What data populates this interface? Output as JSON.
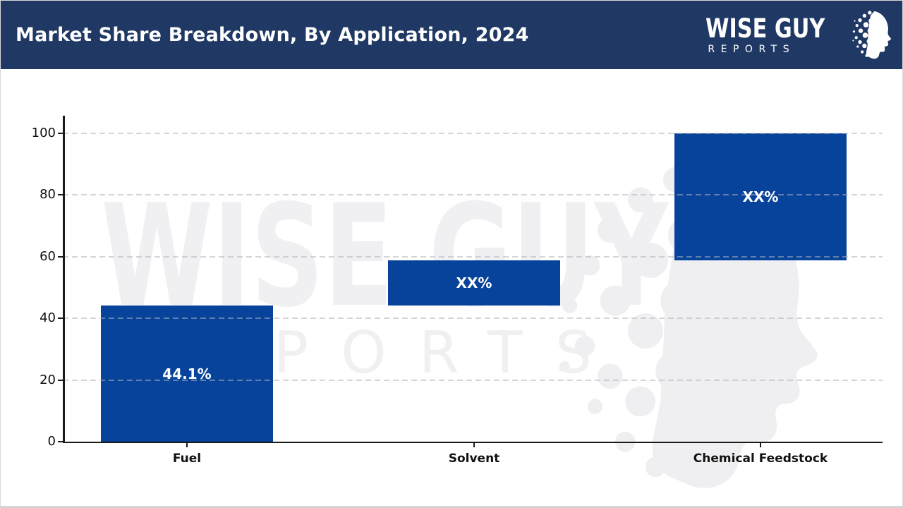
{
  "header": {
    "title": "Market Share Breakdown, By Application, 2024",
    "background_color": "#1f3864",
    "logo": {
      "line1": "WISE GUY",
      "line2": "REPORTS"
    }
  },
  "watermark": {
    "line1": "WISE GUY",
    "line2": "REPORTS"
  },
  "chart_data": {
    "type": "bar",
    "subtype": "waterfall",
    "title": "Market Share Breakdown, By Application, 2024",
    "categories": [
      "Fuel",
      "Solvent",
      "Chemical Feedstock"
    ],
    "segments": [
      {
        "category": "Fuel",
        "start": 0,
        "end": 44.1,
        "label": "44.1%"
      },
      {
        "category": "Solvent",
        "start": 44.1,
        "end": 58.8,
        "label": "XX%"
      },
      {
        "category": "Chemical Feedstock",
        "start": 58.8,
        "end": 100,
        "label": "XX%"
      }
    ],
    "y_ticks": [
      0,
      20,
      40,
      60,
      80,
      100
    ],
    "ylim": [
      0,
      105
    ],
    "xlabel": "",
    "ylabel": "",
    "grid": "horizontal-dashed",
    "legend": "none",
    "bar_color": "#07429b",
    "bar_label_color": "#ffffff"
  }
}
